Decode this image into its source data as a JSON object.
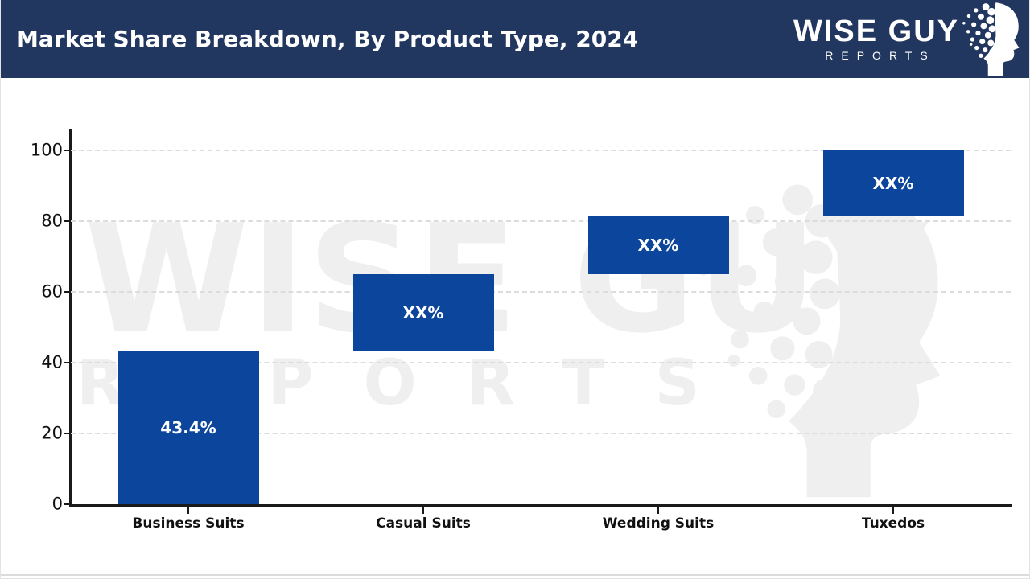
{
  "header": {
    "title": "Market Share Breakdown, By Product Type, 2024",
    "logo": {
      "line1": "WISE GUY",
      "line2": "REPORTS"
    }
  },
  "watermark": {
    "line1": "WISE GUY",
    "line2": "REPORTS"
  },
  "colors": {
    "header_bg": "#22375f",
    "bar_blue": "#0b459c",
    "bar_label_text": "#ffffff",
    "grid": "#dcdcdc",
    "axis": "#1a1a1a",
    "tick_text": "#111111",
    "watermark": "#efefef",
    "background": "#ffffff"
  },
  "chart_data": {
    "type": "bar",
    "subtype": "waterfall",
    "title": "Market Share Breakdown, By Product Type, 2024",
    "categories": [
      "Business Suits",
      "Casual Suits",
      "Wedding Suits",
      "Tuxedos"
    ],
    "segments": [
      {
        "category": "Business Suits",
        "label": "43.4%",
        "start": 0,
        "end": 43.4,
        "value": 43.4
      },
      {
        "category": "Casual Suits",
        "label": "XX%",
        "start": 43.4,
        "end": 65,
        "value": 21.6
      },
      {
        "category": "Wedding Suits",
        "label": "XX%",
        "start": 65,
        "end": 81.4,
        "value": 16.4
      },
      {
        "category": "Tuxedos",
        "label": "XX%",
        "start": 81.4,
        "end": 100,
        "value": 18.6
      }
    ],
    "ylim": [
      0,
      100
    ],
    "yticks": [
      0,
      20,
      40,
      60,
      80,
      100
    ],
    "xlabel": "",
    "ylabel": "",
    "grid": "horizontal-dashed",
    "legend": "none"
  }
}
